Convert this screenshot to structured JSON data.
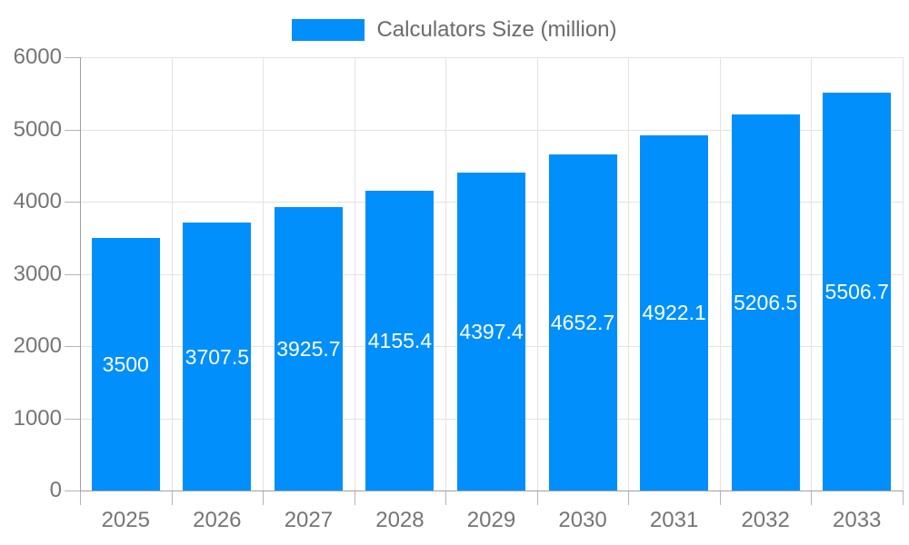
{
  "legend": {
    "label": "Calculators Size (million)"
  },
  "chart_data": {
    "type": "bar",
    "title": "",
    "xlabel": "",
    "ylabel": "",
    "legend_position": "top",
    "grid": true,
    "categories": [
      "2025",
      "2026",
      "2027",
      "2028",
      "2029",
      "2030",
      "2031",
      "2032",
      "2033"
    ],
    "series": [
      {
        "name": "Calculators Size (million)",
        "values": [
          3500,
          3707.5,
          3925.7,
          4155.4,
          4397.4,
          4652.7,
          4922.1,
          5206.5,
          5506.7
        ]
      }
    ],
    "value_labels": [
      "3500",
      "3707.5",
      "3925.7",
      "4155.4",
      "4397.4",
      "4652.7",
      "4922.1",
      "5206.5",
      "5506.7"
    ],
    "ylim": [
      0,
      6000
    ],
    "yticks": [
      0,
      1000,
      2000,
      3000,
      4000,
      5000,
      6000
    ],
    "colors": {
      "bar": "#008FFB",
      "data_label": "#ffffff",
      "axis_text": "#757575",
      "legend_text": "#6b6b6b",
      "grid_line": "#e3e3e3",
      "axis_line": "#a0a0a0",
      "tick": "#b5b5b5",
      "background": "#ffffff"
    }
  }
}
